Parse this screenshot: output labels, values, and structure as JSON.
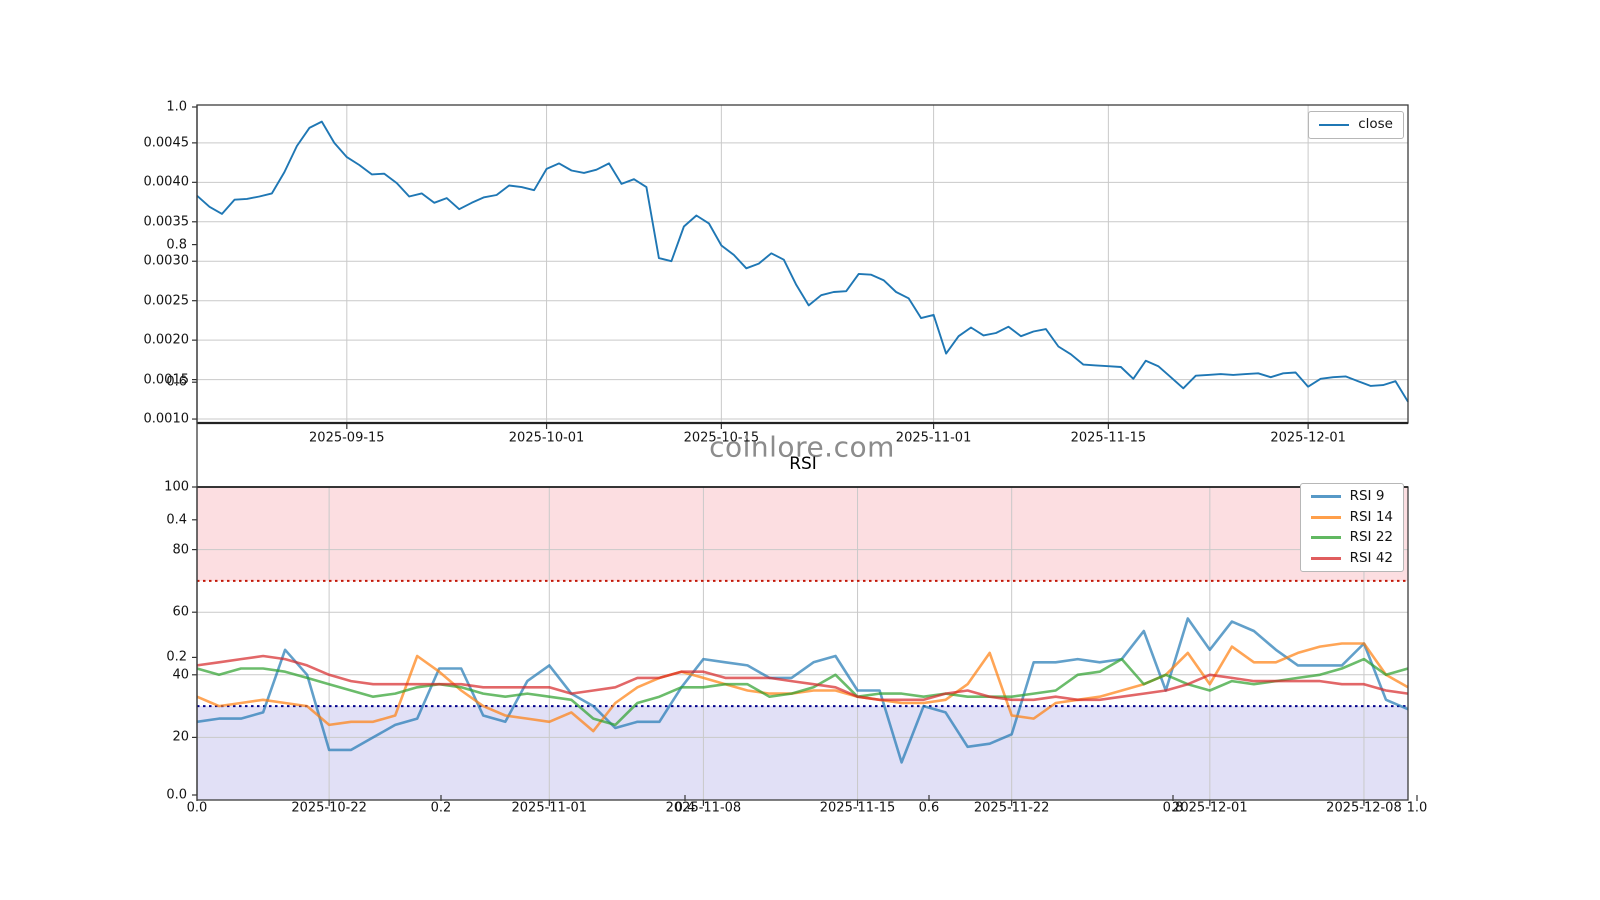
{
  "watermark": "coinlore.com",
  "colors": {
    "close_line": "#1f77b4",
    "rsi9": "#1f77b4",
    "rsi14": "#ff7f0e",
    "rsi22": "#2ca02c",
    "rsi42": "#d62728",
    "overbought_zone": "#fcdee1",
    "oversold_zone": "#e1e0f6",
    "overbought_line": "#c21807",
    "oversold_line": "#00008b",
    "gridline": "#c9c9c9",
    "spine": "#3c3c3c",
    "watermark_text": "#8c8c8c"
  },
  "chart_data": [
    {
      "type": "line",
      "title": "",
      "legend_position": "upper right",
      "grid": true,
      "ylim": [
        0.00095,
        0.00498
      ],
      "yticks": [
        0.001,
        0.0015,
        0.002,
        0.0025,
        0.003,
        0.0035,
        0.004,
        0.0045
      ],
      "xticks": [
        "2025-09-15",
        "2025-10-01",
        "2025-10-15",
        "2025-11-01",
        "2025-11-15",
        "2025-12-01"
      ],
      "x": [
        "2025-09-03",
        "2025-09-04",
        "2025-09-05",
        "2025-09-06",
        "2025-09-07",
        "2025-09-08",
        "2025-09-09",
        "2025-09-10",
        "2025-09-11",
        "2025-09-12",
        "2025-09-13",
        "2025-09-14",
        "2025-09-15",
        "2025-09-16",
        "2025-09-17",
        "2025-09-18",
        "2025-09-19",
        "2025-09-20",
        "2025-09-21",
        "2025-09-22",
        "2025-09-23",
        "2025-09-24",
        "2025-09-25",
        "2025-09-26",
        "2025-09-27",
        "2025-09-28",
        "2025-09-29",
        "2025-09-30",
        "2025-10-01",
        "2025-10-02",
        "2025-10-03",
        "2025-10-04",
        "2025-10-05",
        "2025-10-06",
        "2025-10-07",
        "2025-10-08",
        "2025-10-09",
        "2025-10-10",
        "2025-10-11",
        "2025-10-12",
        "2025-10-13",
        "2025-10-14",
        "2025-10-15",
        "2025-10-16",
        "2025-10-17",
        "2025-10-18",
        "2025-10-19",
        "2025-10-20",
        "2025-10-21",
        "2025-10-22",
        "2025-10-23",
        "2025-10-24",
        "2025-10-25",
        "2025-10-26",
        "2025-10-27",
        "2025-10-28",
        "2025-10-29",
        "2025-10-30",
        "2025-10-31",
        "2025-11-01",
        "2025-11-02",
        "2025-11-03",
        "2025-11-04",
        "2025-11-05",
        "2025-11-06",
        "2025-11-07",
        "2025-11-08",
        "2025-11-09",
        "2025-11-10",
        "2025-11-11",
        "2025-11-12",
        "2025-11-13",
        "2025-11-14",
        "2025-11-15",
        "2025-11-16",
        "2025-11-17",
        "2025-11-18",
        "2025-11-19",
        "2025-11-20",
        "2025-11-21",
        "2025-11-22",
        "2025-11-23",
        "2025-11-24",
        "2025-11-25",
        "2025-11-26",
        "2025-11-27",
        "2025-11-28",
        "2025-11-29",
        "2025-11-30",
        "2025-12-01",
        "2025-12-02",
        "2025-12-03",
        "2025-12-04",
        "2025-12-05",
        "2025-12-06",
        "2025-12-07",
        "2025-12-08",
        "2025-12-09"
      ],
      "series": [
        {
          "name": "close",
          "color": "#1f77b4",
          "values": [
            0.00383,
            0.00369,
            0.0036,
            0.00378,
            0.00379,
            0.00382,
            0.00386,
            0.00413,
            0.00446,
            0.00469,
            0.00477,
            0.0045,
            0.00432,
            0.00422,
            0.0041,
            0.00411,
            0.00399,
            0.00382,
            0.00386,
            0.00374,
            0.0038,
            0.00366,
            0.00374,
            0.00381,
            0.00384,
            0.00396,
            0.00394,
            0.0039,
            0.00417,
            0.00424,
            0.00415,
            0.00412,
            0.00416,
            0.00424,
            0.00398,
            0.00404,
            0.00394,
            0.00304,
            0.003,
            0.00344,
            0.00358,
            0.00348,
            0.0032,
            0.00308,
            0.00291,
            0.00297,
            0.0031,
            0.00302,
            0.0027,
            0.00244,
            0.00257,
            0.00261,
            0.00262,
            0.00284,
            0.00283,
            0.00276,
            0.00261,
            0.00253,
            0.00228,
            0.00232,
            0.00183,
            0.00205,
            0.00216,
            0.00206,
            0.00209,
            0.00217,
            0.00205,
            0.00211,
            0.00214,
            0.00192,
            0.00182,
            0.00169,
            0.00168,
            0.00167,
            0.00166,
            0.00151,
            0.00174,
            0.00167,
            0.00153,
            0.00139,
            0.00155,
            0.00156,
            0.00157,
            0.00156,
            0.00157,
            0.00158,
            0.00153,
            0.00158,
            0.00159,
            0.00141,
            0.00151,
            0.00153,
            0.00154,
            0.00148,
            0.00142,
            0.00143,
            0.00148,
            0.00122
          ]
        }
      ]
    },
    {
      "type": "line",
      "title": "RSI",
      "legend_position": "upper right",
      "grid": true,
      "ylim": [
        0,
        100
      ],
      "yticks": [
        20,
        40,
        60,
        80,
        100
      ],
      "xticks": [
        "2025-10-22",
        "2025-11-01",
        "2025-11-08",
        "2025-11-15",
        "2025-11-22",
        "2025-12-01",
        "2025-12-08"
      ],
      "hlines": [
        {
          "y": 70,
          "color": "#c21807",
          "style": "dotted",
          "name": "overbought-threshold"
        },
        {
          "y": 30,
          "color": "#00008b",
          "style": "dotted",
          "name": "oversold-threshold"
        }
      ],
      "hspans": [
        {
          "from": 70,
          "to": 100,
          "color": "#fcdee1",
          "name": "overbought-zone"
        },
        {
          "from": 0,
          "to": 30,
          "color": "#e1e0f6",
          "name": "oversold-zone"
        }
      ],
      "x": [
        "2025-10-16",
        "2025-10-17",
        "2025-10-18",
        "2025-10-19",
        "2025-10-20",
        "2025-10-21",
        "2025-10-22",
        "2025-10-23",
        "2025-10-24",
        "2025-10-25",
        "2025-10-26",
        "2025-10-27",
        "2025-10-28",
        "2025-10-29",
        "2025-10-30",
        "2025-10-31",
        "2025-11-01",
        "2025-11-02",
        "2025-11-03",
        "2025-11-04",
        "2025-11-05",
        "2025-11-06",
        "2025-11-07",
        "2025-11-08",
        "2025-11-09",
        "2025-11-10",
        "2025-11-11",
        "2025-11-12",
        "2025-11-13",
        "2025-11-14",
        "2025-11-15",
        "2025-11-16",
        "2025-11-17",
        "2025-11-18",
        "2025-11-19",
        "2025-11-20",
        "2025-11-21",
        "2025-11-22",
        "2025-11-23",
        "2025-11-24",
        "2025-11-25",
        "2025-11-26",
        "2025-11-27",
        "2025-11-28",
        "2025-11-29",
        "2025-11-30",
        "2025-12-01",
        "2025-12-02",
        "2025-12-03",
        "2025-12-04",
        "2025-12-05",
        "2025-12-06",
        "2025-12-07",
        "2025-12-08",
        "2025-12-09",
        "2025-12-10"
      ],
      "series": [
        {
          "name": "RSI 9",
          "color": "#1f77b4",
          "values": [
            25,
            26,
            26,
            28,
            48,
            40,
            16,
            16,
            20,
            24,
            26,
            42,
            42,
            27,
            25,
            38,
            43,
            34,
            30,
            23,
            25,
            25,
            36,
            45,
            44,
            43,
            39,
            39,
            44,
            46,
            35,
            35,
            12,
            30,
            28,
            17,
            18,
            21,
            44,
            44,
            45,
            44,
            45,
            54,
            35,
            58,
            48,
            57,
            54,
            48,
            43,
            43,
            43,
            50,
            32,
            29
          ]
        },
        {
          "name": "RSI 14",
          "color": "#ff7f0e",
          "values": [
            33,
            30,
            31,
            32,
            31,
            30,
            24,
            25,
            25,
            27,
            46,
            41,
            35,
            30,
            27,
            26,
            25,
            28,
            22,
            31,
            36,
            39,
            41,
            39,
            37,
            35,
            34,
            34,
            35,
            35,
            33,
            32,
            31,
            31,
            32,
            37,
            47,
            27,
            26,
            31,
            32,
            33,
            35,
            37,
            40,
            47,
            37,
            49,
            44,
            44,
            47,
            49,
            50,
            50,
            40,
            36
          ]
        },
        {
          "name": "RSI 22",
          "color": "#2ca02c",
          "values": [
            42,
            40,
            42,
            42,
            41,
            39,
            37,
            35,
            33,
            34,
            36,
            37,
            36,
            34,
            33,
            34,
            33,
            32,
            26,
            24,
            31,
            33,
            36,
            36,
            37,
            37,
            33,
            34,
            36,
            40,
            33,
            34,
            34,
            33,
            34,
            33,
            33,
            33,
            34,
            35,
            40,
            41,
            45,
            37,
            40,
            37,
            35,
            38,
            37,
            38,
            39,
            40,
            42,
            45,
            40,
            42
          ]
        },
        {
          "name": "RSI 42",
          "color": "#d62728",
          "values": [
            43,
            44,
            45,
            46,
            45,
            43,
            40,
            38,
            37,
            37,
            37,
            37,
            37,
            36,
            36,
            36,
            36,
            34,
            35,
            36,
            39,
            39,
            41,
            41,
            39,
            39,
            39,
            38,
            37,
            36,
            33,
            32,
            32,
            32,
            34,
            35,
            33,
            32,
            32,
            33,
            32,
            32,
            33,
            34,
            35,
            37,
            40,
            39,
            38,
            38,
            38,
            38,
            37,
            37,
            35,
            34
          ]
        }
      ]
    }
  ],
  "overlay_axis": {
    "comment": "figure-level fraction axis whose tick labels overlap the chart labels",
    "yticks": [
      "1.0",
      "0.8",
      "0.6",
      "0.4",
      "0.2",
      "0.0"
    ],
    "xticks": [
      "0.0",
      "0.2",
      "0.4",
      "0.6",
      "0.8",
      "1.0"
    ]
  }
}
